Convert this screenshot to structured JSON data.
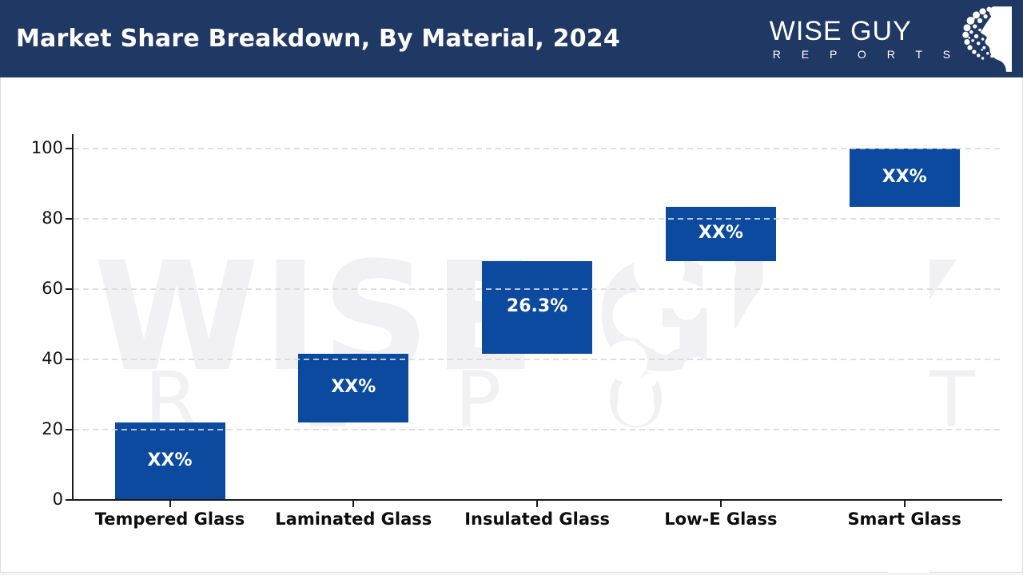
{
  "header": {
    "title": "Market Share Breakdown, By Material, 2024",
    "brand": {
      "name": "WISE GUY",
      "sub": "R E P O R T S"
    },
    "bg_color": "#1f3864"
  },
  "watermark": {
    "line1": "WISE GUY",
    "line2": "R E P O R T S"
  },
  "chart_data": {
    "type": "bar",
    "subtype": "floating-waterfall",
    "title": "Market Share Breakdown, By Material, 2024",
    "categories": [
      "Tempered Glass",
      "Laminated Glass",
      "Insulated Glass",
      "Low-E Glass",
      "Smart Glass"
    ],
    "series": [
      {
        "name": "Market Share (%)",
        "segments": [
          {
            "category": "Tempered Glass",
            "start": 0,
            "end": 22.0,
            "label": "XX%"
          },
          {
            "category": "Laminated Glass",
            "start": 22.0,
            "end": 41.7,
            "label": "XX%"
          },
          {
            "category": "Insulated Glass",
            "start": 41.7,
            "end": 68.0,
            "label": "26.3%"
          },
          {
            "category": "Low-E Glass",
            "start": 68.0,
            "end": 83.4,
            "label": "XX%"
          },
          {
            "category": "Smart Glass",
            "start": 83.4,
            "end": 100.0,
            "label": "XX%"
          }
        ]
      }
    ],
    "xlabel": "",
    "ylabel": "",
    "ylim": [
      0,
      100
    ],
    "yticks": [
      0,
      20,
      40,
      60,
      80,
      100
    ],
    "grid": "horizontal-dashed",
    "legend": "none",
    "bar_color": "#0b4a9e",
    "bar_label_color": "#ffffff",
    "gridline_color": "#d9d9d9",
    "axis_color": "#1a1a1a"
  }
}
